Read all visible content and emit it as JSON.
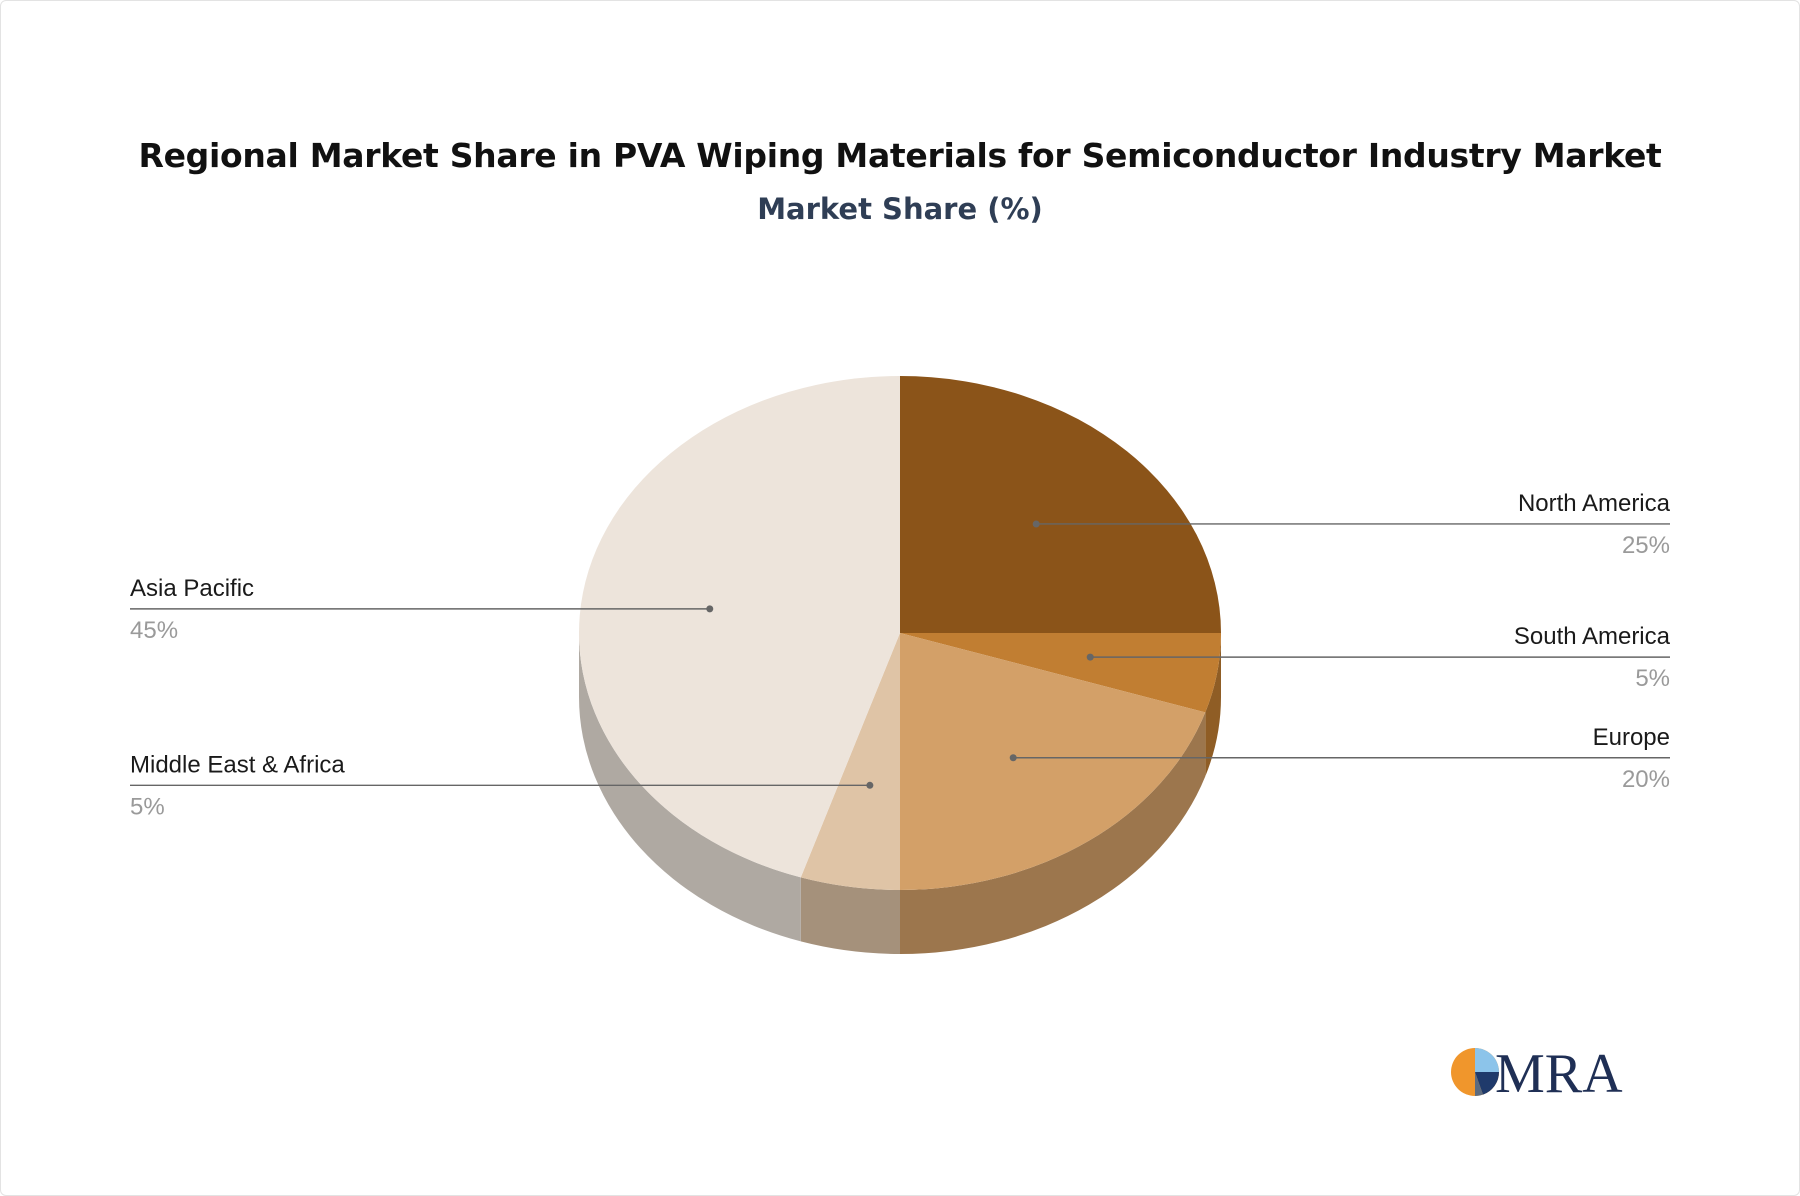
{
  "chart_data": {
    "type": "pie",
    "title": "Regional Market Share in PVA Wiping Materials for Semiconductor Industry Market",
    "subtitle": "Market Share (%)",
    "slices": [
      {
        "label": "North America",
        "value": 25,
        "value_label": "25%",
        "color": "#8B5419"
      },
      {
        "label": "South America",
        "value": 5,
        "value_label": "5%",
        "color": "#C17E32"
      },
      {
        "label": "Europe",
        "value": 20,
        "value_label": "20%",
        "color": "#D3A068"
      },
      {
        "label": "Middle East & Africa",
        "value": 5,
        "value_label": "5%",
        "color": "#DFC4A6"
      },
      {
        "label": "Asia Pacific",
        "value": 45,
        "value_label": "45%",
        "color": "#EDE4DB"
      }
    ],
    "style": "3d-pie",
    "legend": "none",
    "labels": "outside-with-leader-lines"
  },
  "brand": {
    "logo_text": "MRA"
  }
}
